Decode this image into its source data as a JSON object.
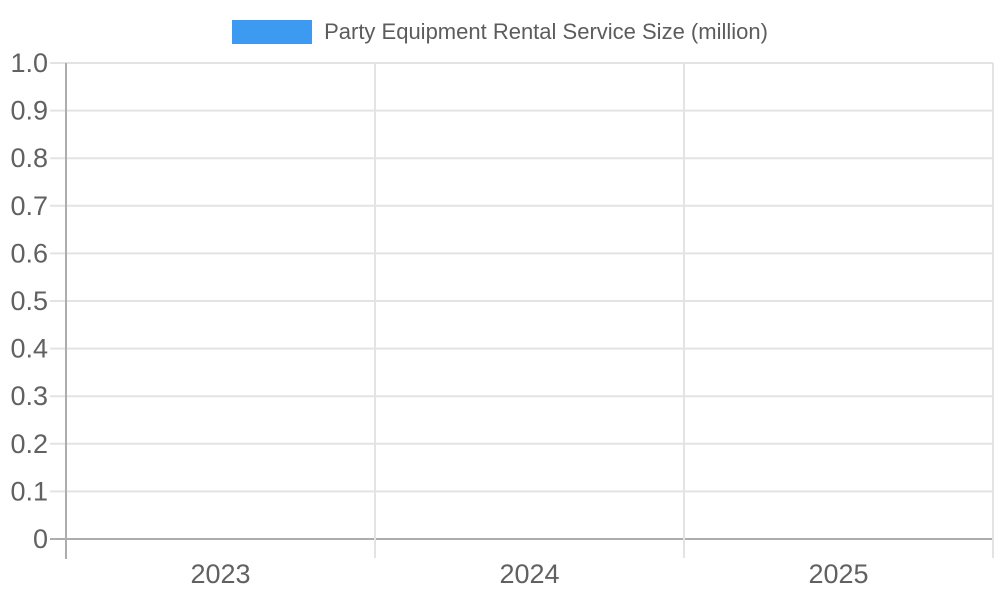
{
  "legend": {
    "label": "Party Equipment Rental Service Size (million)",
    "swatch_color": "#3d9af1"
  },
  "colors": {
    "background": "#ffffff",
    "grid_line": "#e3e3e3",
    "axis_line": "#adadad",
    "tick_label": "#616161",
    "legend_text": "#5c5c5c",
    "series_blue": "#3d9af1"
  },
  "chart_data": {
    "type": "bar",
    "title": "Party Equipment Rental Service Size (million)",
    "categories": [
      "2023",
      "2024",
      "2025"
    ],
    "series": [
      {
        "name": "Party Equipment Rental Service Size (million)",
        "color": "#3d9af1",
        "values": []
      }
    ],
    "xlabel": "",
    "ylabel": "",
    "ylim": [
      0,
      1.0
    ],
    "grid": true,
    "legend_position": "top",
    "y_ticks": [
      {
        "value": 0,
        "label": "0"
      },
      {
        "value": 0.1,
        "label": "0.1"
      },
      {
        "value": 0.2,
        "label": "0.2"
      },
      {
        "value": 0.3,
        "label": "0.3"
      },
      {
        "value": 0.4,
        "label": "0.4"
      },
      {
        "value": 0.5,
        "label": "0.5"
      },
      {
        "value": 0.6,
        "label": "0.6"
      },
      {
        "value": 0.7,
        "label": "0.7"
      },
      {
        "value": 0.8,
        "label": "0.8"
      },
      {
        "value": 0.9,
        "label": "0.9"
      },
      {
        "value": 1.0,
        "label": "1.0"
      }
    ]
  }
}
